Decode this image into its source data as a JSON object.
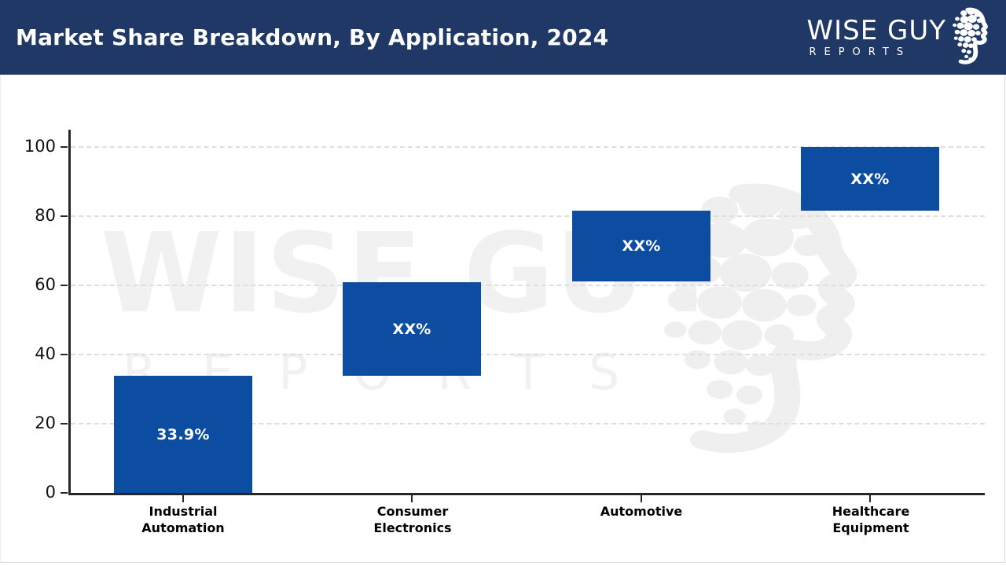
{
  "header": {
    "title": "Market Share Breakdown, By Application, 2024",
    "bg_color": "#1f3866",
    "logo": {
      "brand": "WISE GUY",
      "sub": "REPORTS"
    }
  },
  "watermark": {
    "brand": "WISE GUY",
    "sub": "REPORTS"
  },
  "chart_data": {
    "type": "bar",
    "subtype": "waterfall",
    "title": "Market Share Breakdown, By Application, 2024",
    "categories": [
      "Industrial\nAutomation",
      "Consumer\nElectronics",
      "Automotive",
      "Healthcare\nEquipment"
    ],
    "segments": [
      {
        "category": "Industrial\nAutomation",
        "start": 0,
        "end": 33.9,
        "label": "33.9%"
      },
      {
        "category": "Consumer\nElectronics",
        "start": 33.9,
        "end": 61,
        "label": "XX%"
      },
      {
        "category": "Automotive",
        "start": 61,
        "end": 81.5,
        "label": "XX%"
      },
      {
        "category": "Healthcare\nEquipment",
        "start": 81.5,
        "end": 100,
        "label": "XX%"
      }
    ],
    "ylim": [
      0,
      100
    ],
    "yticks": [
      0,
      20,
      40,
      60,
      80,
      100
    ],
    "grid": "horizontal-dashed",
    "legend": "none",
    "bar_color": "#0c4da2",
    "bar_label_color": "#ffffff"
  }
}
